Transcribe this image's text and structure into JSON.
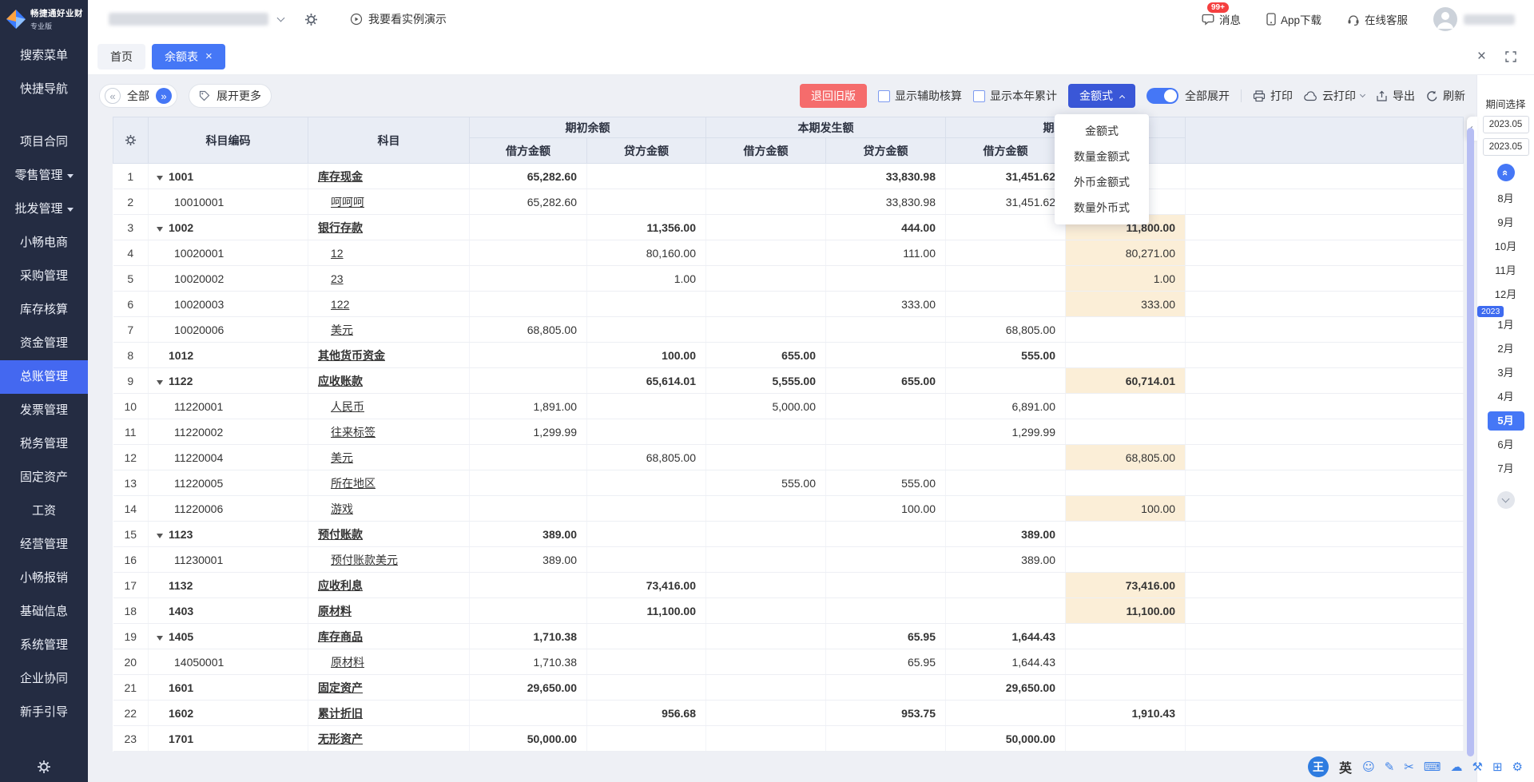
{
  "app": {
    "logo_title": "畅捷通好业财",
    "logo_subtitle": "专业版"
  },
  "colors": {
    "accent": "#4577f6",
    "format_button": "#3a57d7",
    "danger": "#f56c6c",
    "sidebar_bg": "#242c42",
    "highlight_cell": "#fbeed7",
    "badge_red": "#f53f3f",
    "scrollbar": "#b7bef3"
  },
  "sidebar": {
    "items": [
      {
        "label": "搜索菜单"
      },
      {
        "label": "快捷导航"
      },
      {
        "label": "项目合同",
        "gap_before": true
      },
      {
        "label": "零售管理",
        "caret": true
      },
      {
        "label": "批发管理",
        "caret": true
      },
      {
        "label": "小畅电商"
      },
      {
        "label": "采购管理"
      },
      {
        "label": "库存核算"
      },
      {
        "label": "资金管理"
      },
      {
        "label": "总账管理",
        "active": true
      },
      {
        "label": "发票管理"
      },
      {
        "label": "税务管理"
      },
      {
        "label": "固定资产"
      },
      {
        "label": "工资"
      },
      {
        "label": "经营管理"
      },
      {
        "label": "小畅报销"
      },
      {
        "label": "基础信息"
      },
      {
        "label": "系统管理"
      },
      {
        "label": "企业协同"
      },
      {
        "label": "新手引导"
      }
    ]
  },
  "topbar": {
    "demo_link": "我要看实例演示",
    "messages": {
      "label": "消息",
      "badge": "99+"
    },
    "app_download": "App下载",
    "support": "在线客服"
  },
  "tabs": [
    {
      "label": "首页",
      "active": false,
      "closable": false
    },
    {
      "label": "余额表",
      "active": true,
      "closable": true
    }
  ],
  "toolbar": {
    "scope_value": "全部",
    "expand_more_label": "展开更多",
    "back_old_label": "退回旧版",
    "checkbox_aux": "显示辅助核算",
    "checkbox_ytd": "显示本年累计",
    "expand_all_label": "全部展开",
    "print_label": "打印",
    "cloud_print_label": "云打印",
    "export_label": "导出",
    "refresh_label": "刷新"
  },
  "format_menu": {
    "selected": "金额式",
    "items": [
      "金额式",
      "数量金额式",
      "外币金额式",
      "数量外币式"
    ]
  },
  "table": {
    "header": {
      "code": "科目编码",
      "name": "科目",
      "groups": [
        "期初余额",
        "本期发生额",
        "期末余额"
      ],
      "debit": "借方金额",
      "credit": "贷方金额"
    },
    "rows": [
      {
        "num": 1,
        "code": "1001",
        "name": "库存现金",
        "level": 1,
        "expandable": true,
        "cells": [
          "65,282.60",
          "",
          "",
          "33,830.98",
          "31,451.62",
          ""
        ],
        "hl": []
      },
      {
        "num": 2,
        "code": "10010001",
        "name": "呵呵呵",
        "level": 2,
        "expandable": false,
        "cells": [
          "65,282.60",
          "",
          "",
          "33,830.98",
          "31,451.62",
          ""
        ],
        "hl": []
      },
      {
        "num": 3,
        "code": "1002",
        "name": "银行存款",
        "level": 1,
        "expandable": true,
        "cells": [
          "",
          "11,356.00",
          "",
          "444.00",
          "",
          "11,800.00"
        ],
        "hl": [
          5
        ]
      },
      {
        "num": 4,
        "code": "10020001",
        "name": "12",
        "level": 2,
        "expandable": false,
        "cells": [
          "",
          "80,160.00",
          "",
          "111.00",
          "",
          "80,271.00"
        ],
        "hl": [
          5
        ]
      },
      {
        "num": 5,
        "code": "10020002",
        "name": "23",
        "level": 2,
        "expandable": false,
        "cells": [
          "",
          "1.00",
          "",
          "",
          "",
          "1.00"
        ],
        "hl": [
          5
        ]
      },
      {
        "num": 6,
        "code": "10020003",
        "name": "122",
        "level": 2,
        "expandable": false,
        "cells": [
          "",
          "",
          "",
          "333.00",
          "",
          "333.00"
        ],
        "hl": [
          5
        ]
      },
      {
        "num": 7,
        "code": "10020006",
        "name": "美元",
        "level": 2,
        "expandable": false,
        "cells": [
          "68,805.00",
          "",
          "",
          "",
          "68,805.00",
          ""
        ],
        "hl": []
      },
      {
        "num": 8,
        "code": "1012",
        "name": "其他货币资金",
        "level": 1,
        "expandable": false,
        "cells": [
          "",
          "100.00",
          "655.00",
          "",
          "555.00",
          ""
        ],
        "hl": []
      },
      {
        "num": 9,
        "code": "1122",
        "name": "应收账款",
        "level": 1,
        "expandable": true,
        "cells": [
          "",
          "65,614.01",
          "5,555.00",
          "655.00",
          "",
          "60,714.01"
        ],
        "hl": [
          5
        ]
      },
      {
        "num": 10,
        "code": "11220001",
        "name": "人民币",
        "level": 2,
        "expandable": false,
        "cells": [
          "1,891.00",
          "",
          "5,000.00",
          "",
          "6,891.00",
          ""
        ],
        "hl": []
      },
      {
        "num": 11,
        "code": "11220002",
        "name": "往来标签",
        "level": 2,
        "expandable": false,
        "cells": [
          "1,299.99",
          "",
          "",
          "",
          "1,299.99",
          ""
        ],
        "hl": []
      },
      {
        "num": 12,
        "code": "11220004",
        "name": "美元",
        "level": 2,
        "expandable": false,
        "cells": [
          "",
          "68,805.00",
          "",
          "",
          "",
          "68,805.00"
        ],
        "hl": [
          5
        ]
      },
      {
        "num": 13,
        "code": "11220005",
        "name": "所在地区",
        "level": 2,
        "expandable": false,
        "cells": [
          "",
          "",
          "555.00",
          "555.00",
          "",
          ""
        ],
        "hl": []
      },
      {
        "num": 14,
        "code": "11220006",
        "name": "游戏",
        "level": 2,
        "expandable": false,
        "cells": [
          "",
          "",
          "",
          "100.00",
          "",
          "100.00"
        ],
        "hl": [
          5
        ]
      },
      {
        "num": 15,
        "code": "1123",
        "name": "预付账款",
        "level": 1,
        "expandable": true,
        "cells": [
          "389.00",
          "",
          "",
          "",
          "389.00",
          ""
        ],
        "hl": []
      },
      {
        "num": 16,
        "code": "11230001",
        "name": "预付账款美元",
        "level": 2,
        "expandable": false,
        "cells": [
          "389.00",
          "",
          "",
          "",
          "389.00",
          ""
        ],
        "hl": []
      },
      {
        "num": 17,
        "code": "1132",
        "name": "应收利息",
        "level": 1,
        "expandable": false,
        "cells": [
          "",
          "73,416.00",
          "",
          "",
          "",
          "73,416.00"
        ],
        "hl": [
          5
        ]
      },
      {
        "num": 18,
        "code": "1403",
        "name": "原材料",
        "level": 1,
        "expandable": false,
        "cells": [
          "",
          "11,100.00",
          "",
          "",
          "",
          "11,100.00"
        ],
        "hl": [
          5
        ]
      },
      {
        "num": 19,
        "code": "1405",
        "name": "库存商品",
        "level": 1,
        "expandable": true,
        "cells": [
          "1,710.38",
          "",
          "",
          "65.95",
          "1,644.43",
          ""
        ],
        "hl": []
      },
      {
        "num": 20,
        "code": "14050001",
        "name": "原材料",
        "level": 2,
        "expandable": false,
        "cells": [
          "1,710.38",
          "",
          "",
          "65.95",
          "1,644.43",
          ""
        ],
        "hl": []
      },
      {
        "num": 21,
        "code": "1601",
        "name": "固定资产",
        "level": 1,
        "expandable": false,
        "cells": [
          "29,650.00",
          "",
          "",
          "",
          "29,650.00",
          ""
        ],
        "hl": []
      },
      {
        "num": 22,
        "code": "1602",
        "name": "累计折旧",
        "level": 1,
        "expandable": false,
        "cells": [
          "",
          "956.68",
          "",
          "953.75",
          "",
          "1,910.43"
        ],
        "hl": []
      },
      {
        "num": 23,
        "code": "1701",
        "name": "无形资产",
        "level": 1,
        "expandable": false,
        "cells": [
          "50,000.00",
          "",
          "",
          "",
          "50,000.00",
          ""
        ],
        "hl": []
      }
    ]
  },
  "period_panel": {
    "title": "期间选择",
    "from": "2023.05",
    "to": "2023.05",
    "year_badge": "2023",
    "months": [
      "8月",
      "9月",
      "10月",
      "11月",
      "12月",
      "1月",
      "2月",
      "3月",
      "4月",
      "5月",
      "6月",
      "7月"
    ],
    "selected": "5月"
  },
  "ime": {
    "logo": "王",
    "lang": "英",
    "icons": [
      {
        "name": "smiley-icon",
        "glyph": "☺"
      },
      {
        "name": "pen-icon",
        "glyph": "✎"
      },
      {
        "name": "scissors-icon",
        "glyph": "✂"
      },
      {
        "name": "keyboard-icon",
        "glyph": "⌨"
      },
      {
        "name": "cloud-icon",
        "glyph": "☁"
      },
      {
        "name": "tools-icon",
        "glyph": "⚒"
      },
      {
        "name": "grid-icon",
        "glyph": "⊞"
      },
      {
        "name": "gear-icon",
        "glyph": "⚙"
      }
    ]
  }
}
